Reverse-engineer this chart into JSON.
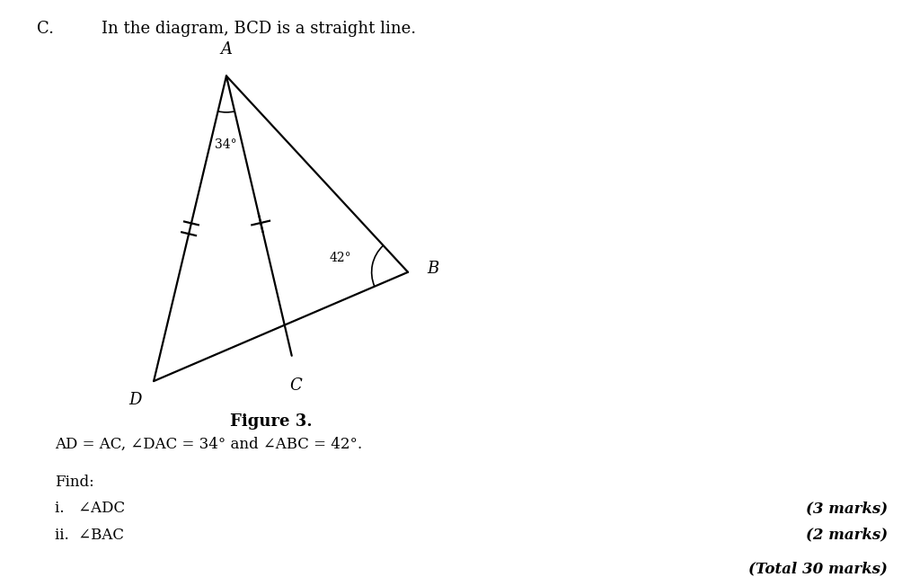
{
  "title_prefix": "C.",
  "title_text": "In the diagram, BCD is a straight line.",
  "figure_label": "Figure 3.",
  "condition_text": "AD = AC, ∠DAC = 34° and ∠ABC = 42°.",
  "find_label": "Find:",
  "find_items": [
    "i.   ∠ADC",
    "ii.  ∠BAC"
  ],
  "marks": [
    "(3 marks)",
    "(2 marks)"
  ],
  "total_marks": "(Total 30 marks)",
  "points": {
    "A": [
      0.3,
      0.92
    ],
    "D": [
      0.1,
      0.08
    ],
    "C": [
      0.48,
      0.15
    ],
    "B": [
      0.8,
      0.38
    ]
  },
  "line_color": "#000000",
  "bg_color": "#ffffff"
}
